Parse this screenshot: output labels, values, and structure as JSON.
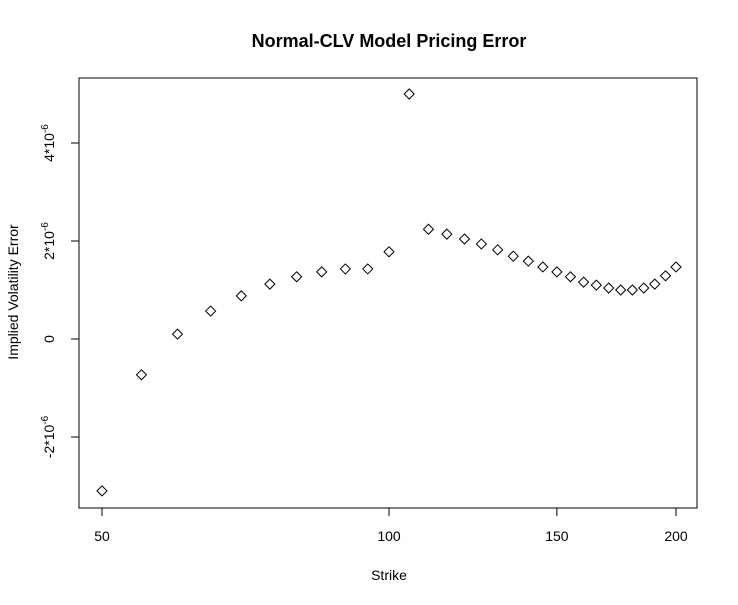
{
  "chart_data": {
    "type": "scatter",
    "title": "Normal-CLV Model Pricing Error",
    "xlabel": "Strike",
    "ylabel": "Implied Volatility Error",
    "x_scale": "log",
    "xlim": [
      48,
      210
    ],
    "ylim": [
      -3.4e-06,
      5.3e-06
    ],
    "x_ticks": [
      50,
      100,
      150,
      200
    ],
    "x_tick_labels": [
      "50",
      "100",
      "150",
      "200"
    ],
    "y_ticks": [
      -2e-06,
      0,
      2e-06,
      4e-06
    ],
    "y_tick_labels": [
      {
        "mantissa": "-2*10",
        "exp": "-6"
      },
      {
        "mantissa": "0",
        "exp": ""
      },
      {
        "mantissa": "2*10",
        "exp": "-6"
      },
      {
        "mantissa": "4*10",
        "exp": "-6"
      }
    ],
    "grid": false,
    "marker": "diamond-open",
    "x": [
      50,
      55,
      60,
      65,
      70,
      75,
      80,
      85,
      90,
      95,
      100,
      105,
      110,
      115,
      120,
      125,
      130,
      135,
      140,
      145,
      150,
      155,
      160,
      165,
      170,
      175,
      180,
      185,
      190,
      195,
      200
    ],
    "y": [
      -3.1e-06,
      -7.3e-07,
      1e-07,
      5.7e-07,
      8.8e-07,
      1.12e-06,
      1.27e-06,
      1.37e-06,
      1.43e-06,
      1.43e-06,
      1.78e-06,
      5e-06,
      2.24e-06,
      2.14e-06,
      2.04e-06,
      1.94e-06,
      1.82e-06,
      1.69e-06,
      1.59e-06,
      1.47e-06,
      1.37e-06,
      1.27e-06,
      1.16e-06,
      1.1e-06,
      1.04e-06,
      1e-06,
      1e-06,
      1.04e-06,
      1.12e-06,
      1.29e-06,
      1.47e-06
    ]
  },
  "colors": {
    "foreground": "#000000",
    "background": "#ffffff"
  }
}
